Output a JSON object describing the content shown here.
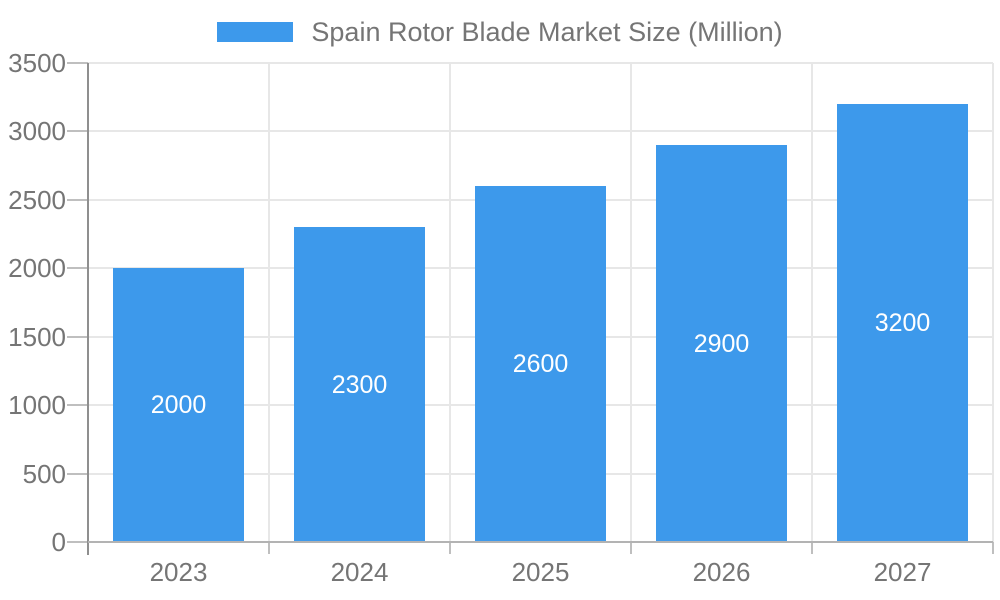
{
  "legend": {
    "label": "Spain Rotor Blade Market Size (Million)"
  },
  "chart_data": {
    "type": "bar",
    "title": "Spain Rotor Blade Market Size (Million)",
    "categories": [
      "2023",
      "2024",
      "2025",
      "2026",
      "2027"
    ],
    "values": [
      2000,
      2300,
      2600,
      2900,
      3200
    ],
    "xlabel": "",
    "ylabel": "",
    "ylim": [
      0,
      3500
    ],
    "ytick_step": 500,
    "ytick_labels": [
      "0",
      "500",
      "1000",
      "1500",
      "2000",
      "2500",
      "3000",
      "3500"
    ],
    "bar_value_labels": [
      "2000",
      "2300",
      "2600",
      "2900",
      "3200"
    ],
    "legend_position": "top-center",
    "grid": true,
    "colors": {
      "bar": "#3D99EB",
      "bar_label": "#FFFFFF",
      "axis_text": "#757575",
      "grid_line": "#E7E7E7",
      "tick": "#BFBFBF",
      "y_axis_line": "#8F8F8F",
      "x_axis_line": "#B3B3B3",
      "background": "#FFFFFF"
    }
  }
}
